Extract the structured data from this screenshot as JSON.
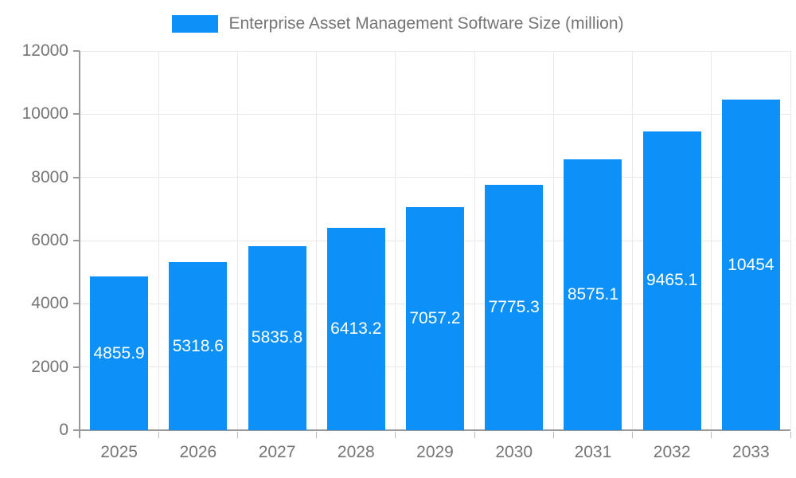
{
  "chart_data": {
    "type": "bar",
    "title": "Enterprise Asset Management Software Size (million)",
    "legend": {
      "label": "Enterprise Asset Management Software Size (million)",
      "position": "top-center"
    },
    "categories": [
      "2025",
      "2026",
      "2027",
      "2028",
      "2029",
      "2030",
      "2031",
      "2032",
      "2033"
    ],
    "series": [
      {
        "name": "Enterprise Asset Management Software Size (million)",
        "values": [
          4855.9,
          5318.6,
          5835.8,
          6413.2,
          7057.2,
          7775.3,
          8575.1,
          9465.1,
          10454
        ],
        "bar_labels": [
          "4855.9",
          "5318.6",
          "5835.8",
          "6413.2",
          "7057.2",
          "7775.3",
          "8575.1",
          "9465.1",
          "10454"
        ],
        "bar_label_position": "inside-center"
      }
    ],
    "xlabel": "",
    "ylabel": "",
    "ylim": [
      0,
      12000
    ],
    "yticks": [
      0,
      2000,
      4000,
      6000,
      8000,
      10000,
      12000
    ],
    "grid": true,
    "colors": {
      "bar": "#0E90F9",
      "bar_label_text": "#ffffff",
      "axis_text": "#757575",
      "axis_line": "#999999",
      "gridline": "#e9e9e9",
      "tick": "#bbbbbb",
      "background": "#ffffff"
    }
  }
}
